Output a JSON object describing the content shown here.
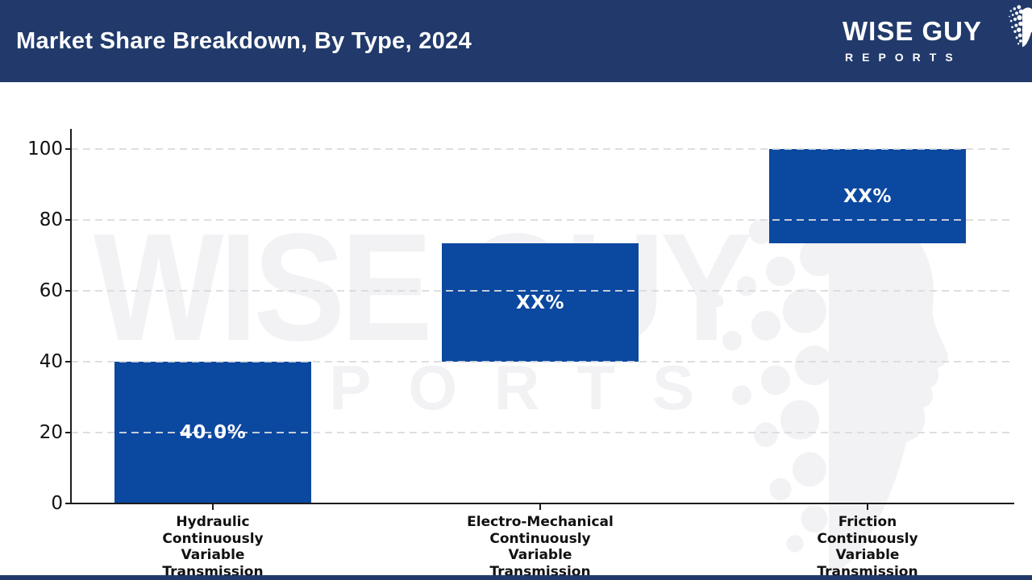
{
  "header": {
    "title": "Market Share Breakdown, By Type, 2024"
  },
  "logo": {
    "line1": "WISE GUY",
    "line2": "REPORTS"
  },
  "watermark": {
    "line1": "WISE GUY",
    "line2": "REPORTS"
  },
  "chart_data": {
    "type": "bar",
    "subtype": "waterfall",
    "title": "Market Share Breakdown, By Type, 2024",
    "xlabel": "",
    "ylabel": "",
    "categories": [
      [
        "Hydraulic",
        "Continuously",
        "Variable",
        "Transmission"
      ],
      [
        "Electro-Mechanical",
        "Continuously",
        "Variable",
        "Transmission"
      ],
      [
        "Friction",
        "Continuously",
        "Variable",
        "Transmission"
      ]
    ],
    "segments": [
      {
        "category": "Hydraulic Continuously Variable Transmission",
        "start": 0,
        "end": 40,
        "value_label": "40.0%"
      },
      {
        "category": "Electro-Mechanical Continuously Variable Transmission",
        "start": 40,
        "end": 73.3,
        "value_label": "XX%"
      },
      {
        "category": "Friction Continuously Variable Transmission",
        "start": 73.3,
        "end": 100,
        "value_label": "XX%"
      }
    ],
    "yticks": [
      0,
      20,
      40,
      60,
      80,
      100
    ],
    "ylim": [
      0,
      105.7
    ],
    "grid": true,
    "grid_style": "dashed",
    "legend": "none",
    "colors": {
      "bar": "#0b48a0",
      "header_bg": "#213a6b",
      "grid": "#d9dbde",
      "axis": "#1c1c1c",
      "value_label": "#ffffff",
      "tick_label": "#111111",
      "watermark": "#f2f2f4"
    }
  }
}
